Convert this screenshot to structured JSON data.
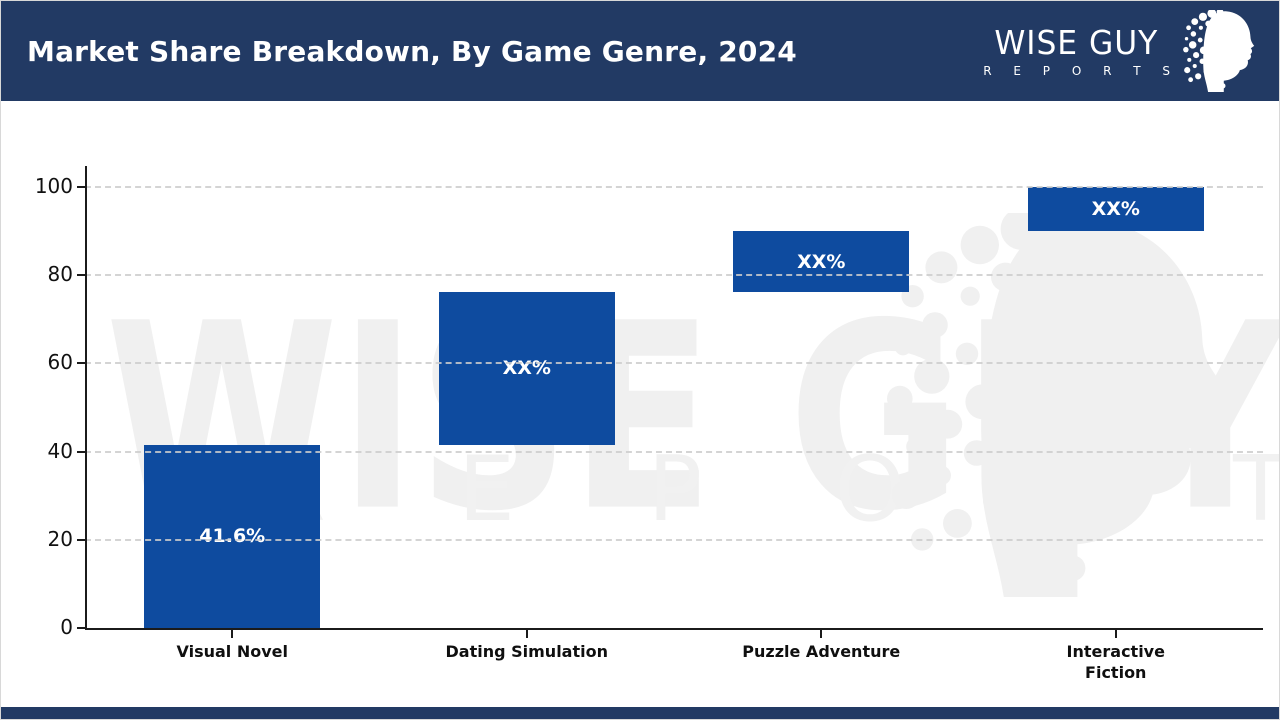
{
  "header": {
    "title": "Market Share Breakdown, By Game Genre, 2024",
    "logo": {
      "name": "WISE GUY",
      "subname": "R E P O R T S"
    }
  },
  "watermark": {
    "name": "WISE GUY",
    "subname": "R E P O R T S"
  },
  "chart_data": {
    "type": "bar",
    "subtype": "waterfall",
    "title": "Market Share Breakdown, By Game Genre, 2024",
    "categories": [
      "Visual Novel",
      "Dating Simulation",
      "Puzzle Adventure",
      "Interactive Fiction"
    ],
    "category_display": [
      "Visual Novel",
      "Dating Simulation",
      "Puzzle Adventure",
      "Interactive\nFiction"
    ],
    "segments": [
      {
        "category": "Visual Novel",
        "start": 0,
        "end": 41.6,
        "label": "41.6%"
      },
      {
        "category": "Dating Simulation",
        "start": 41.6,
        "end": 76.2,
        "label": "XX%"
      },
      {
        "category": "Puzzle Adventure",
        "start": 76.2,
        "end": 90,
        "label": "XX%"
      },
      {
        "category": "Interactive Fiction",
        "start": 90,
        "end": 100,
        "label": "XX%"
      }
    ],
    "yticks": [
      0,
      20,
      40,
      60,
      80,
      100
    ],
    "ylim": [
      0,
      104.8
    ],
    "xlabel": "",
    "ylabel": "",
    "grid": "dashed-horizontal-over-bars",
    "legend": "none",
    "colors": {
      "bar": "#0e4b9f",
      "bar_label": "#ffffff",
      "grid": "#d9d9d9",
      "axis": "#1b1b1b",
      "tick_label": "#111111",
      "header_bg": "#223a64",
      "watermark": "#f0f0f0"
    }
  }
}
